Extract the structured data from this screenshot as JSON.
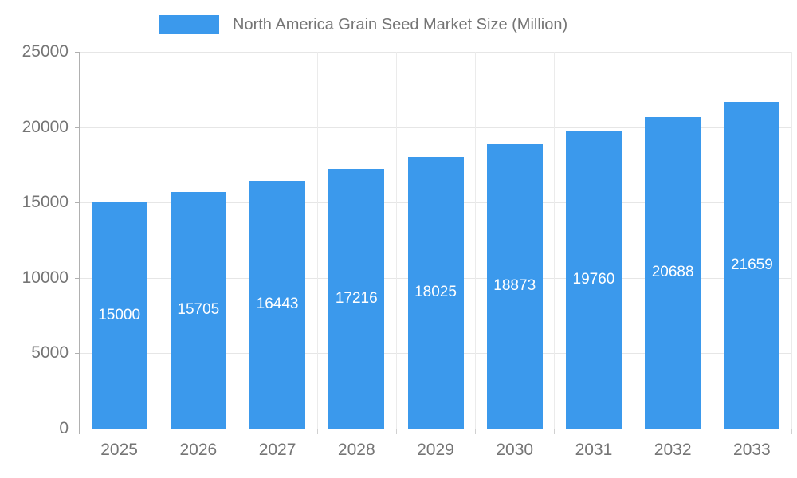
{
  "chart_data": {
    "type": "bar",
    "title": "North America Grain Seed Market Size (Million)",
    "categories": [
      "2025",
      "2026",
      "2027",
      "2028",
      "2029",
      "2030",
      "2031",
      "2032",
      "2033"
    ],
    "values": [
      15000,
      15705,
      16443,
      17216,
      18025,
      18873,
      19760,
      20688,
      21659
    ],
    "series": [
      {
        "name": "North America Grain Seed Market Size (Million)",
        "values": [
          15000,
          15705,
          16443,
          17216,
          18025,
          18873,
          19760,
          20688,
          21659
        ]
      }
    ],
    "xlabel": "",
    "ylabel": "",
    "ylim": [
      0,
      25000
    ],
    "y_ticks": [
      0,
      5000,
      10000,
      15000,
      20000,
      25000
    ],
    "grid": true,
    "legend_position": "top",
    "value_labels": "inside-center",
    "colors": {
      "bar": "#3B99EC",
      "bar_label": "#ffffff",
      "axis_text": "#757575",
      "axis_line": "#b0b0b0",
      "gridline": "#e6e6e6"
    }
  }
}
